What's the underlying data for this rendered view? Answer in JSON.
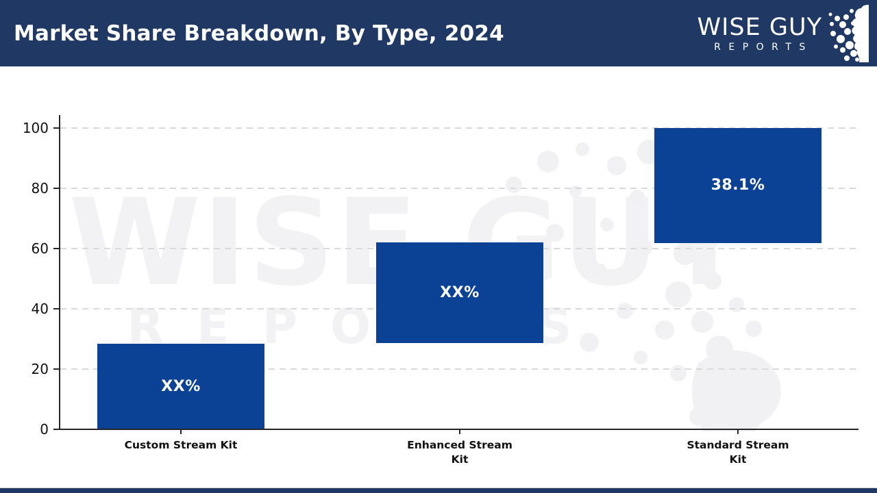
{
  "header": {
    "title": "Market Share Breakdown, By Type, 2024",
    "logo": {
      "name_top": "WISE GUY",
      "name_bottom": "REPORTS"
    }
  },
  "watermark": {
    "text_top": "WISE GUY",
    "text_bottom": "REPORTS"
  },
  "colors": {
    "header_bg": "#1f3864",
    "bar": "#0b4295",
    "axis": "#262626",
    "grid": "#d9d9d9",
    "tick_text": "#111111",
    "bar_label": "#ffffff",
    "watermark": "#f2f2f4"
  },
  "chart_data": {
    "type": "bar",
    "subtype": "floating-waterfall",
    "title": "Market Share Breakdown, By Type, 2024",
    "categories": [
      "Custom Stream Kit",
      "Enhanced Stream Kit",
      "Standard Stream Kit"
    ],
    "category_label_lines": [
      [
        "Custom Stream Kit"
      ],
      [
        "Enhanced Stream",
        "Kit"
      ],
      [
        "Standard Stream",
        "Kit"
      ]
    ],
    "bars": [
      {
        "category": "Custom Stream Kit",
        "start": 0,
        "end": 28.5,
        "label": "XX%"
      },
      {
        "category": "Enhanced Stream Kit",
        "start": 28.6,
        "end": 62.0,
        "label": "XX%"
      },
      {
        "category": "Standard Stream Kit",
        "start": 61.9,
        "end": 100.0,
        "label": "38.1%"
      }
    ],
    "xlabel": "",
    "ylabel": "",
    "ylim": [
      0,
      100
    ],
    "yticks": [
      0,
      20,
      40,
      60,
      80,
      100
    ],
    "grid": "horizontal-dashed",
    "legend": "none"
  }
}
